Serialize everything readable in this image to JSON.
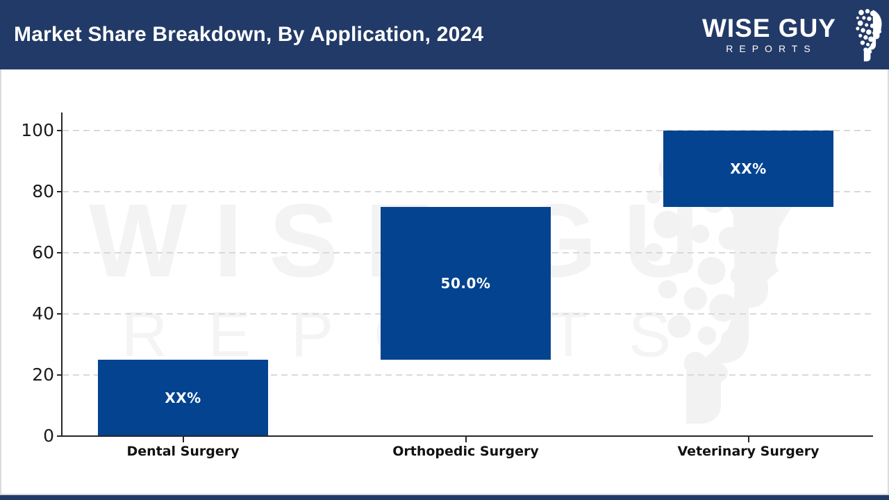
{
  "header": {
    "title": "Market Share Breakdown, By Application, 2024",
    "logo": {
      "line1": "WISE GUY",
      "line2": "REPORTS"
    }
  },
  "watermark": {
    "line1": "WISE GUY",
    "line2": "REPORTS"
  },
  "chart_data": {
    "type": "bar",
    "subtype": "floating-waterfall",
    "title": "Market Share Breakdown, By Application, 2024",
    "categories": [
      "Dental Surgery",
      "Orthopedic Surgery",
      "Veterinary Surgery"
    ],
    "series": [
      {
        "name": "Market Share (%)",
        "segments": [
          {
            "category": "Dental Surgery",
            "start": 0,
            "end": 25,
            "label": "XX%"
          },
          {
            "category": "Orthopedic Surgery",
            "start": 25,
            "end": 75,
            "label": "50.0%"
          },
          {
            "category": "Veterinary Surgery",
            "start": 75,
            "end": 100,
            "label": "XX%"
          }
        ]
      }
    ],
    "xlabel": "",
    "ylabel": "",
    "ylim": [
      0,
      105
    ],
    "yticks": [
      0,
      20,
      40,
      60,
      80,
      100
    ],
    "grid": "horizontal-dashed",
    "legend": "none",
    "bar_color": "#04438F",
    "bar_label_color": "#ffffff"
  },
  "colors": {
    "header_bg": "#223A67",
    "footer_bg": "#223A67",
    "bar": "#04438F",
    "gridline": "#d9d9d9",
    "axis": "#262626",
    "watermark": "#f2f2f3"
  }
}
